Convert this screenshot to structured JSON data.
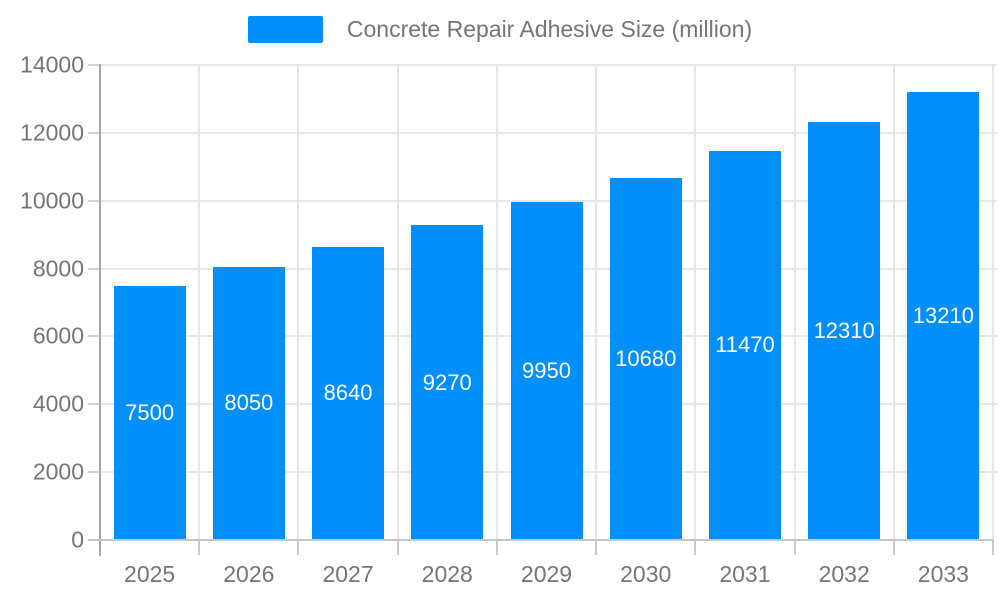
{
  "chart_data": {
    "type": "bar",
    "title": "Concrete Repair Adhesive Size (million)",
    "categories": [
      "2025",
      "2026",
      "2027",
      "2028",
      "2029",
      "2030",
      "2031",
      "2032",
      "2033"
    ],
    "values": [
      7500,
      8050,
      8640,
      9270,
      9950,
      10680,
      11470,
      12310,
      13210
    ],
    "xlabel": "",
    "ylabel": "",
    "ylim": [
      0,
      14000
    ],
    "ytick_step": 2000,
    "ytick_labels": [
      "0",
      "2000",
      "4000",
      "6000",
      "8000",
      "10000",
      "12000",
      "14000"
    ],
    "grid": true,
    "legend_position": "top",
    "legend_entries": [
      "Concrete Repair Adhesive Size (million)"
    ],
    "data_labels_visible": true,
    "colors": {
      "bar": "#008FFB",
      "data_label": "#ffffff",
      "axis_text": "#757575",
      "gridline": "#e7e7e7",
      "y_axis_line": "#a6a6a6",
      "x_axis_line": "#c6c6c6",
      "background": "#ffffff"
    }
  }
}
